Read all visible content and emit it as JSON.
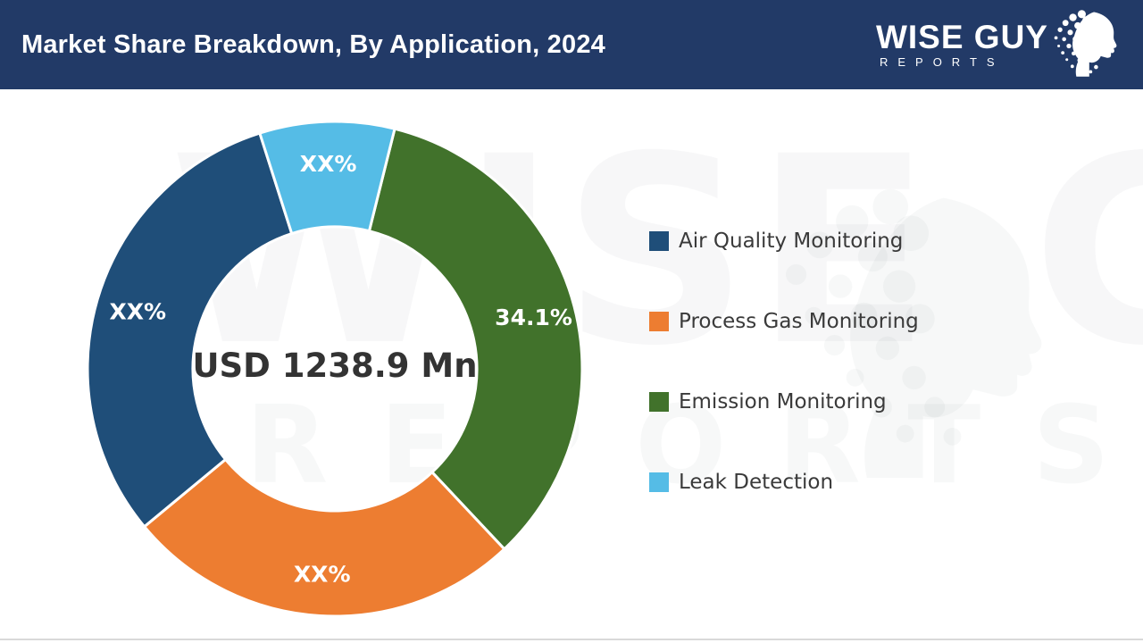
{
  "header": {
    "title": "Market Share Breakdown, By Application, 2024",
    "bg_color": "#223A67",
    "logo": {
      "wordmark": "WISE GUY",
      "subtext": "REPORTS"
    }
  },
  "watermark": {
    "line1": "WISE GUY",
    "line2": "REPORTS"
  },
  "chart_data": {
    "type": "pie",
    "subtype": "donut",
    "title": "Market Share Breakdown, By Application, 2024",
    "center_label": "USD 1238.9 Mn",
    "start_angle_deg": 76,
    "direction": "clockwise",
    "legend_position": "right",
    "segments": [
      {
        "name": "Emission Monitoring",
        "display_label": "34.1%",
        "value_percent": 34.1,
        "arc_percent_estimate": 34.1,
        "color": "#41722B"
      },
      {
        "name": "Process Gas Monitoring",
        "display_label": "XX%",
        "arc_percent_estimate": 26.0,
        "color": "#ED7D31"
      },
      {
        "name": "Air Quality Monitoring",
        "display_label": "XX%",
        "arc_percent_estimate": 31.1,
        "color": "#1F4E79"
      },
      {
        "name": "Leak Detection",
        "display_label": "XX%",
        "arc_percent_estimate": 8.8,
        "color": "#55BCE6"
      }
    ],
    "legend": [
      {
        "label": "Air Quality Monitoring",
        "color": "#1F4E79"
      },
      {
        "label": "Process Gas Monitoring",
        "color": "#ED7D31"
      },
      {
        "label": "Emission Monitoring",
        "color": "#41722B"
      },
      {
        "label": "Leak Detection",
        "color": "#55BCE6"
      }
    ]
  },
  "colors": {
    "header_bg": "#223A67",
    "center_text": "#333333",
    "legend_text": "#3A3A3A",
    "slice_label_text": "#FFFFFF",
    "bottom_rule": "#D9D9D9"
  }
}
